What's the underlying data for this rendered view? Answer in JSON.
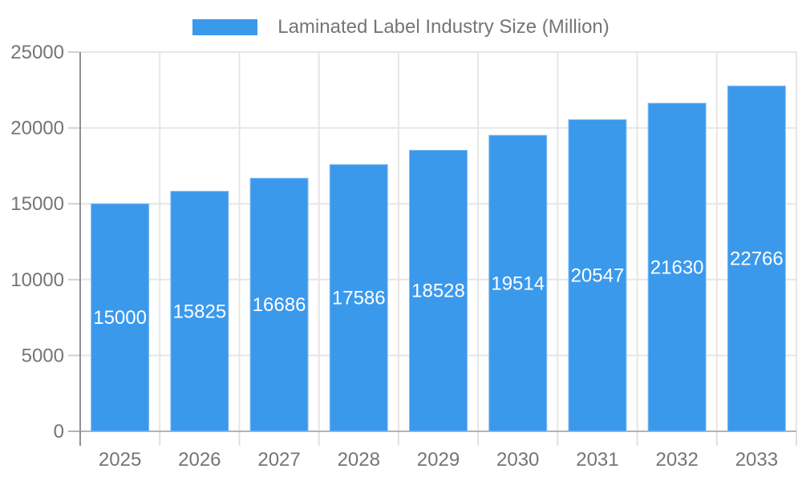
{
  "chart_data": {
    "type": "bar",
    "title": "Laminated Label Industry Size (Million)",
    "categories": [
      "2025",
      "2026",
      "2027",
      "2028",
      "2029",
      "2030",
      "2031",
      "2032",
      "2033"
    ],
    "series": [
      {
        "name": "Laminated Label Industry Size (Million)",
        "color": "#3b99ec",
        "values": [
          15000,
          15825,
          16686,
          17586,
          18528,
          19514,
          20547,
          21630,
          22766
        ]
      }
    ],
    "xlabel": "",
    "ylabel": "",
    "ylim": [
      0,
      25000
    ],
    "yticks": [
      0,
      5000,
      10000,
      15000,
      20000,
      25000
    ],
    "grid": true,
    "legend_position": "top",
    "data_labels_position": "inside-center",
    "colors": {
      "bar_fill": "#3b99ec",
      "bar_stroke": "#85bdf1",
      "data_label_text": "#ffffff",
      "axis_text": "#757575",
      "gridline": "#e6e6e6",
      "y_axis_line": "#909090",
      "x_axis_line": "#b3b3b3",
      "y_tick": "#d0d0d0",
      "x_tick": "#e0e0e0",
      "background": "#ffffff"
    }
  }
}
